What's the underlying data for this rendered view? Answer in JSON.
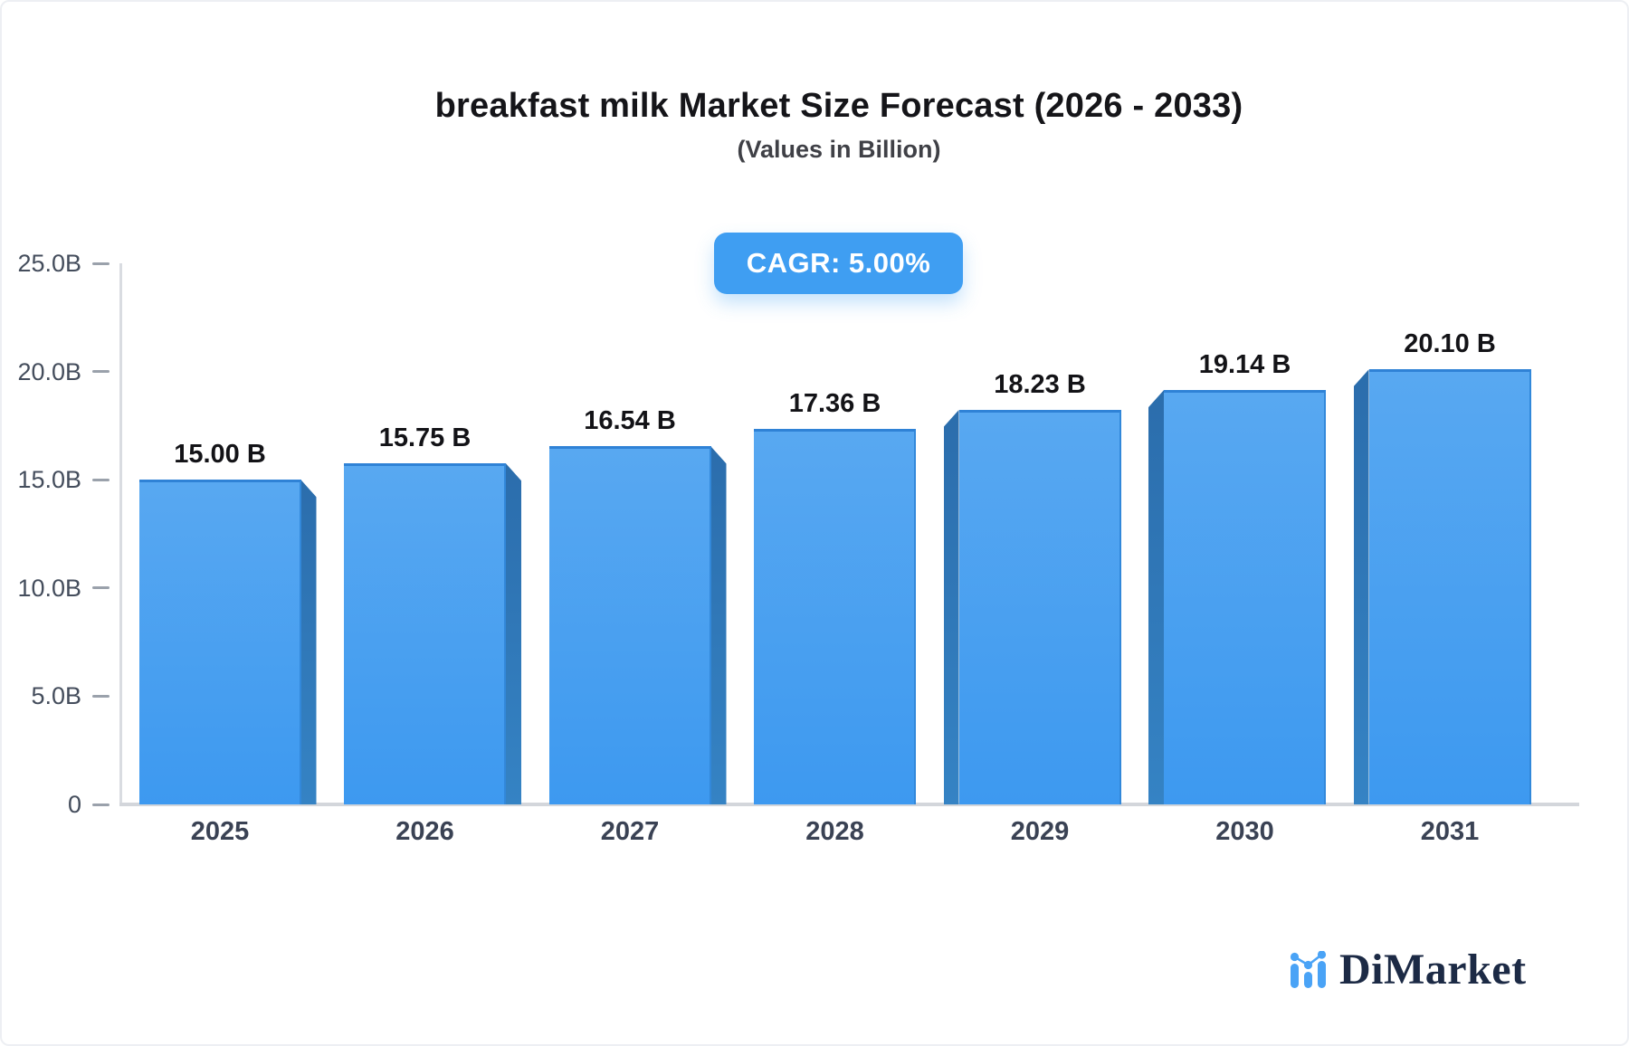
{
  "header": {
    "title": "breakfast milk Market Size Forecast (2026 - 2033)",
    "subtitle": "(Values in Billion)",
    "cagr_badge": "CAGR: 5.00%"
  },
  "chart_data": {
    "type": "bar",
    "title": "breakfast milk Market Size Forecast (2026 - 2033)",
    "subtitle": "(Values in Billion)",
    "cagr_percent": "5.00%",
    "unit": "Billion",
    "categories": [
      "2025",
      "2026",
      "2027",
      "2028",
      "2029",
      "2030",
      "2031"
    ],
    "values": [
      15.0,
      15.75,
      16.54,
      17.36,
      18.23,
      19.14,
      20.1
    ],
    "value_labels": [
      "15.00 B",
      "15.75 B",
      "16.54 B",
      "17.36 B",
      "18.23 B",
      "19.14 B",
      "20.10 B"
    ],
    "ylim": [
      0,
      25
    ],
    "y_ticks": [
      {
        "label": "25.0B",
        "value": 25
      },
      {
        "label": "20.0B",
        "value": 20
      },
      {
        "label": "15.0B",
        "value": 15
      },
      {
        "label": "10.0B",
        "value": 10
      },
      {
        "label": "5.0B",
        "value": 5
      },
      {
        "label": "0",
        "value": 0
      }
    ],
    "grid": false,
    "legend": false,
    "bar_style": "3d-beveled",
    "bevel_sides": [
      "right",
      "right",
      "right",
      "none",
      "left",
      "left",
      "left"
    ]
  },
  "branding": {
    "logo_text": "DiMarket",
    "logo_icon": "mini-bar-line-chart-icon"
  },
  "colors": {
    "bar_face_top": "#58a8f1",
    "bar_face_bottom": "#3d99f0",
    "bar_top_edge": "#2f82d6",
    "bar_right_edge": "#3288da",
    "bar_side_top": "#2b6dac",
    "bar_side_bottom": "#3583c4",
    "badge_bg": "#3f9ef2",
    "badge_text": "#ffffff",
    "axis_line": "#d3d6db",
    "tick_dash": "#9aa1ab",
    "y_label": "#444d5c",
    "x_label": "#3a4254",
    "value_label": "#131317",
    "title": "#151519",
    "subtitle": "#3f4046",
    "logo_navy": "#1c2a45",
    "logo_blue": "#4aa3f6",
    "card_border": "#edeff3"
  }
}
